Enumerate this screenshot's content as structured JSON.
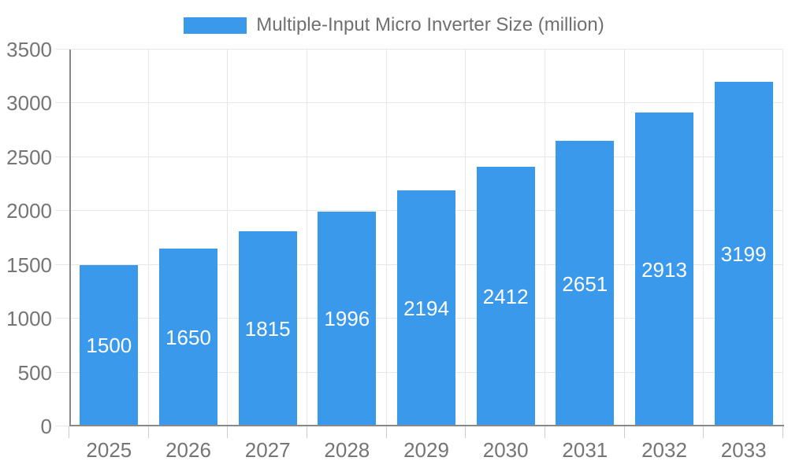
{
  "chart_data": {
    "type": "bar",
    "title": "",
    "legend": "Multiple-Input Micro Inverter Size (million)",
    "legend_position": "top",
    "categories": [
      "2025",
      "2026",
      "2027",
      "2028",
      "2029",
      "2030",
      "2031",
      "2032",
      "2033"
    ],
    "values": [
      1500,
      1650,
      1815,
      1996,
      2194,
      2412,
      2651,
      2913,
      3199
    ],
    "xlabel": "",
    "ylabel": "",
    "ylim": [
      0,
      3500
    ],
    "yticks": [
      0,
      500,
      1000,
      1500,
      2000,
      2500,
      3000,
      3500
    ],
    "grid": "horizontal and vertical gridlines on",
    "bar_label_position": "inside-center",
    "colors": {
      "bar": "#3b99ec",
      "bar_label": "#ffffff",
      "axis_text": "#757575",
      "legend_text": "#707070",
      "gridline": "#e7e7e7",
      "axis_line": "#888888",
      "bottom_tick": "#cccccc",
      "background": "#ffffff"
    }
  }
}
